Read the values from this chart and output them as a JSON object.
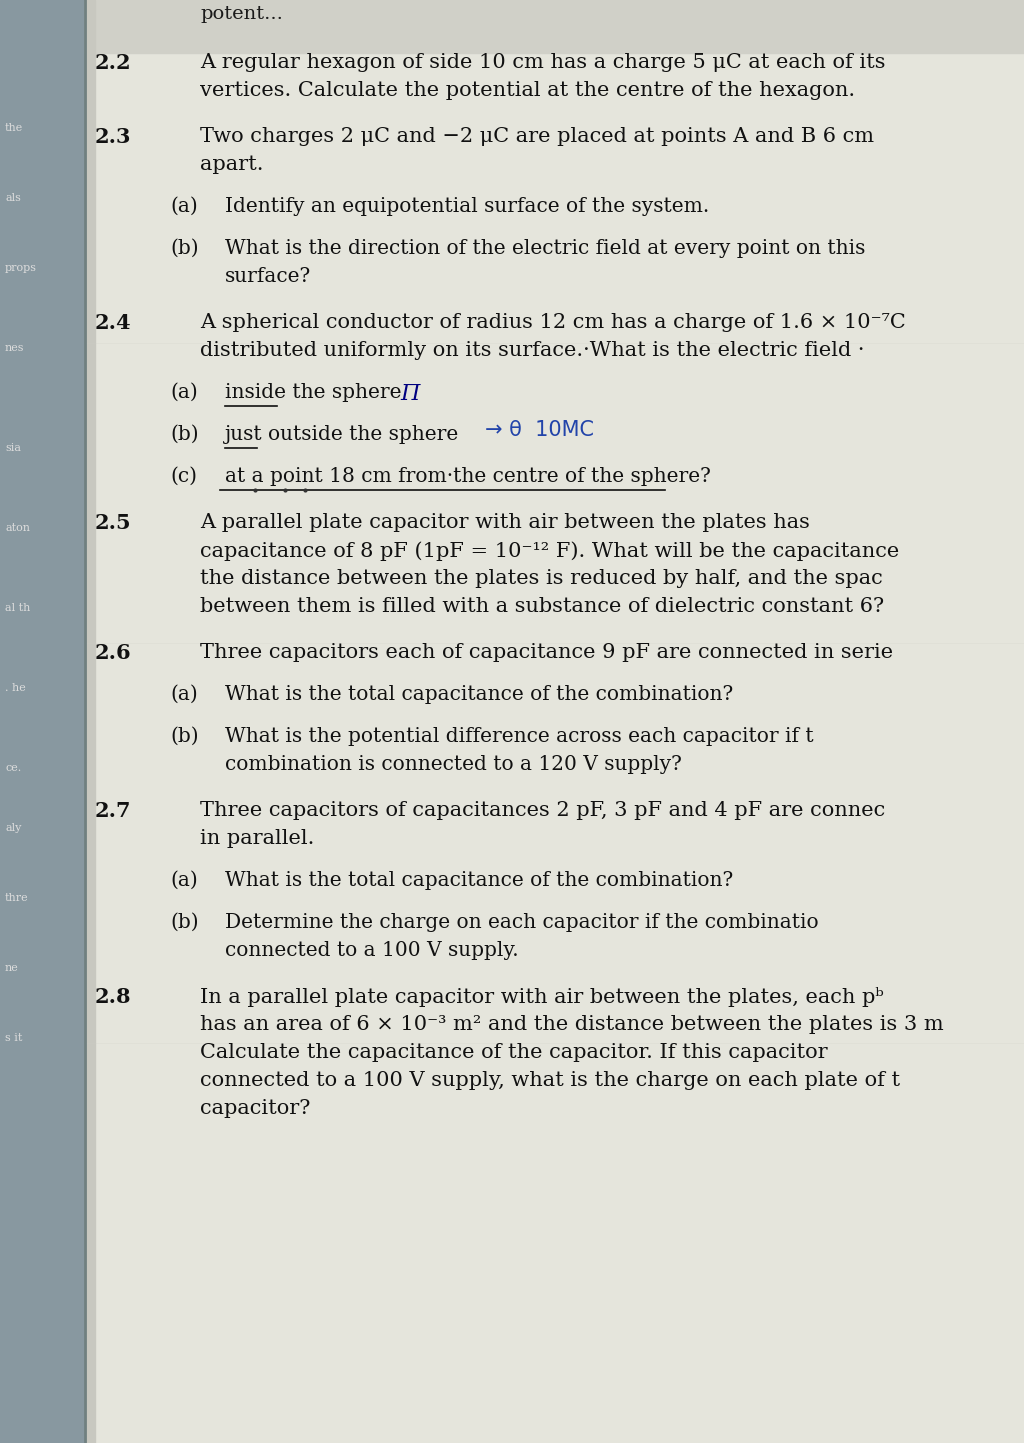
{
  "bg_color": "#c8cfc8",
  "page_bg": "#e8e8e0",
  "title_text": "potent...",
  "problems": [
    {
      "number": "2.2",
      "text": "A regular hexagon of side 10 cm has a charge 5 μC at each of its\nvertices. Calculate the potential at the centre of the hexagon."
    },
    {
      "number": "2.3",
      "text": "Two charges 2 μC and −2 μC are placed at points A and B 6 cm\napart.",
      "subparts": [
        {
          "label": "(a)",
          "text": "Identify an equipotential surface of the system."
        },
        {
          "label": "(b)",
          "text": "What is the direction of the electric field at every point on this\nsurface?"
        }
      ]
    },
    {
      "number": "2.4",
      "text": "A spherical conductor of radius 12 cm has a charge of 1.6 × 10⁻⁷C\ndistributed uniformly on its surface. What is the electric field",
      "subparts": [
        {
          "label": "(a)",
          "text": "inside the sphere",
          "annotation": "Π",
          "underline": true
        },
        {
          "label": "(b)",
          "text": "just outside the sphere",
          "annotation": "→ θ  10MC",
          "underline": true,
          "handwritten": true
        },
        {
          "label": "(c)",
          "text": "at a point 18 cm from the centre of the sphere?",
          "underline": true
        }
      ]
    },
    {
      "number": "2.5",
      "text": "A parallel plate capacitor with air between the plates has\ncapacitance of 8 pF (1pF = 10⁻¹² F). What will be the capacitance\nthe distance between the plates is reduced by half, and the spac\nbetween them is filled with a substance of dielectric constant 6?"
    },
    {
      "number": "2.6",
      "text": "Three capacitors each of capacitance 9 pF are connected in serie",
      "subparts": [
        {
          "label": "(a)",
          "text": "What is the total capacitance of the combination?"
        },
        {
          "label": "(b)",
          "text": "What is the potential difference across each capacitor if t\ncombination is connected to a 120 V supply?"
        }
      ]
    },
    {
      "number": "2.7",
      "text": "Three capacitors of capacitances 2 pF, 3 pF and 4 pF are connec\nin parallel.",
      "subparts": [
        {
          "label": "(a)",
          "text": "What is the total capacitance of the combination?"
        },
        {
          "label": "(b)",
          "text": "Determine the charge on each capacitor if the combinatio\nconnected to a 100 V supply."
        }
      ]
    },
    {
      "number": "2.8",
      "text": "In a parallel plate capacitor with air between the plates, each p\nhas an area of 6 × 10⁻³ m² and the distance between the plates is 3 m\nCalculate the capacitance of the capacitor. If this capacitor\nconnected to a 100 V supply, what is the charge on each plate of t\ncapacitor?"
    }
  ],
  "left_margin_notes": [
    "the",
    "als",
    "props",
    "nes",
    "sia",
    "aton",
    "al th",
    ". he",
    "ce.",
    "aly",
    "thre",
    "ne",
    "s it"
  ],
  "top_clipped": "potent..."
}
